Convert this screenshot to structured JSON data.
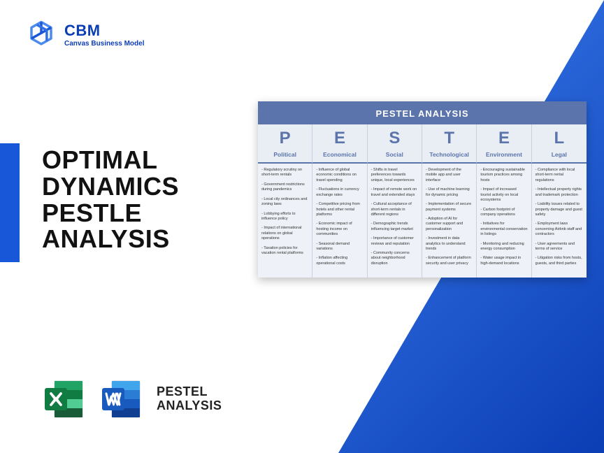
{
  "colors": {
    "brand_blue": "#1858d8",
    "brand_dark": "#0b3db5",
    "table_header_bg": "#5b75ac",
    "table_cell_bg": "#eef1f7",
    "table_border": "#c8d0e0",
    "excel_green": "#107c41",
    "excel_green_light": "#21a366",
    "word_blue": "#2b579a",
    "word_blue_light": "#41a5ee"
  },
  "logo": {
    "title": "CBM",
    "subtitle": "Canvas Business Model"
  },
  "main_title_lines": [
    "OPTIMAL",
    "DYNAMICS",
    "PESTLE",
    "ANALYSIS"
  ],
  "file_label_lines": [
    "PESTEL",
    "ANALYSIS"
  ],
  "pestel": {
    "title": "PESTEL ANALYSIS",
    "columns": [
      {
        "letter": "P",
        "label": "Political",
        "items": [
          "Regulatory scrutiny on short-term rentals",
          "Government restrictions during pandemics",
          "Local city ordinances and zoning laws",
          "Lobbying efforts to influence policy",
          "Impact of international relations on global operations",
          "Taxation policies for vacation rental platforms"
        ]
      },
      {
        "letter": "E",
        "label": "Economical",
        "items": [
          "Influence of global economic conditions on travel spending",
          "Fluctuations in currency exchange rates",
          "Competitive pricing from hotels and other rental platforms",
          "Economic impact of hosting income on communities",
          "Seasonal demand variations",
          "Inflation affecting operational costs"
        ]
      },
      {
        "letter": "S",
        "label": "Social",
        "items": [
          "Shifts in travel preferences towards unique, local experiences",
          "Impact of remote work on travel and extended stays",
          "Cultural acceptance of short-term rentals in different regions",
          "Demographic trends influencing target market",
          "Importance of customer reviews and reputation",
          "Community concerns about neighborhood disruption"
        ]
      },
      {
        "letter": "T",
        "label": "Technological",
        "items": [
          "Development of the mobile app and user interface",
          "Use of machine learning for dynamic pricing",
          "Implementation of secure payment systems",
          "Adoption of AI for customer support and personalization",
          "Investment in data analytics to understand trends",
          "Enhancement of platform security and user privacy"
        ]
      },
      {
        "letter": "E",
        "label": "Environment",
        "items": [
          "Encouraging sustainable tourism practices among hosts",
          "Impact of increased tourist activity on local ecosystems",
          "Carbon footprint of company operations",
          "Initiatives for environmental conservation in listings",
          "Monitoring and reducing energy consumption",
          "Water usage impact in high-demand locations"
        ]
      },
      {
        "letter": "L",
        "label": "Legal",
        "items": [
          "Compliance with local short-term rental regulations",
          "Intellectual property rights and trademark protection",
          "Liability issues related to property damage and guest safety",
          "Employment laws concerning Airbnb staff and contractors",
          "User agreements and terms of service",
          "Litigation risks from hosts, guests, and third parties"
        ]
      }
    ]
  }
}
